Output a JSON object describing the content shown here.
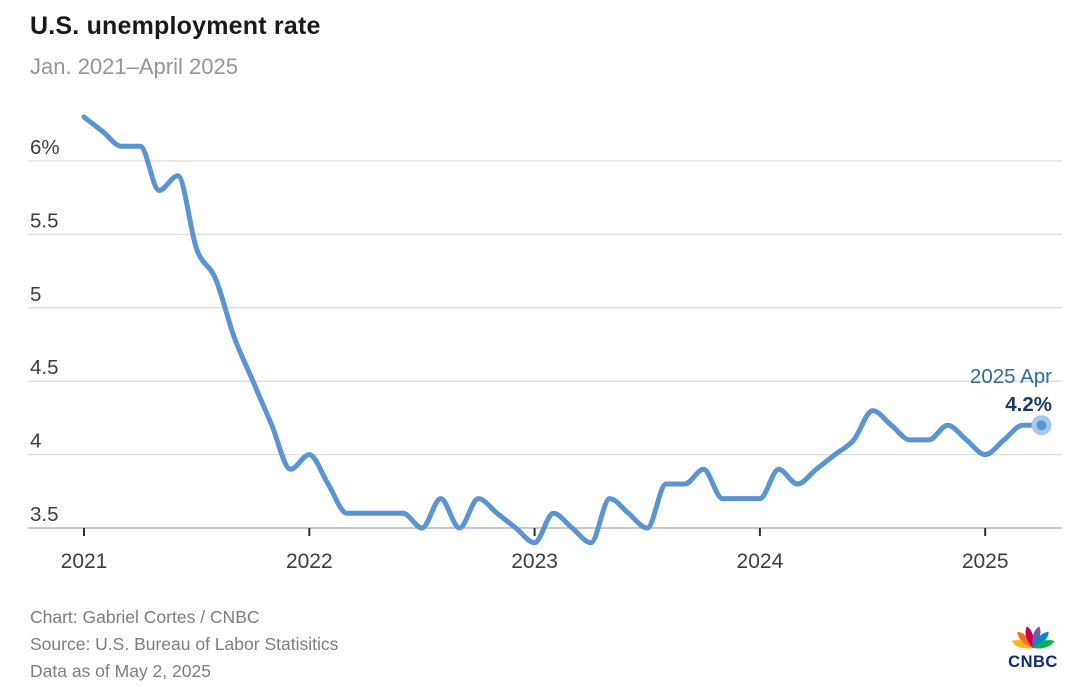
{
  "header": {
    "title": "U.S. unemployment rate",
    "subtitle": "Jan. 2021–April 2025"
  },
  "chart_data": {
    "type": "line",
    "title": "U.S. unemployment rate",
    "subtitle": "Jan. 2021–April 2025",
    "series_name": "U.S. unemployment rate",
    "unit": "%",
    "x": [
      "2021-01",
      "2021-02",
      "2021-03",
      "2021-04",
      "2021-05",
      "2021-06",
      "2021-07",
      "2021-08",
      "2021-09",
      "2021-10",
      "2021-11",
      "2021-12",
      "2022-01",
      "2022-02",
      "2022-03",
      "2022-04",
      "2022-05",
      "2022-06",
      "2022-07",
      "2022-08",
      "2022-09",
      "2022-10",
      "2022-11",
      "2022-12",
      "2023-01",
      "2023-02",
      "2023-03",
      "2023-04",
      "2023-05",
      "2023-06",
      "2023-07",
      "2023-08",
      "2023-09",
      "2023-10",
      "2023-11",
      "2023-12",
      "2024-01",
      "2024-02",
      "2024-03",
      "2024-04",
      "2024-05",
      "2024-06",
      "2024-07",
      "2024-08",
      "2024-09",
      "2024-10",
      "2024-11",
      "2024-12",
      "2025-01",
      "2025-02",
      "2025-03",
      "2025-04"
    ],
    "values": [
      6.3,
      6.2,
      6.1,
      6.1,
      5.8,
      5.9,
      5.4,
      5.2,
      4.8,
      4.5,
      4.2,
      3.9,
      4.0,
      3.8,
      3.6,
      3.6,
      3.6,
      3.6,
      3.5,
      3.7,
      3.5,
      3.7,
      3.6,
      3.5,
      3.4,
      3.6,
      3.5,
      3.4,
      3.7,
      3.6,
      3.5,
      3.8,
      3.8,
      3.9,
      3.7,
      3.7,
      3.7,
      3.9,
      3.8,
      3.9,
      4.0,
      4.1,
      4.3,
      4.2,
      4.1,
      4.1,
      4.2,
      4.1,
      4.0,
      4.1,
      4.2,
      4.2
    ],
    "ylim": [
      3.3,
      6.45
    ],
    "grid": true,
    "legend": "none",
    "y_ticks": [
      {
        "value": 6.0,
        "label": "6%"
      },
      {
        "value": 5.5,
        "label": "5.5"
      },
      {
        "value": 5.0,
        "label": "5"
      },
      {
        "value": 4.5,
        "label": "4.5"
      },
      {
        "value": 4.0,
        "label": "4"
      },
      {
        "value": 3.5,
        "label": "3.5"
      }
    ],
    "x_ticks": [
      {
        "month_index": 0,
        "label": "2021"
      },
      {
        "month_index": 12,
        "label": "2022"
      },
      {
        "month_index": 24,
        "label": "2023"
      },
      {
        "month_index": 36,
        "label": "2024"
      },
      {
        "month_index": 48,
        "label": "2025"
      }
    ],
    "annotation": {
      "date_label": "2025 Apr",
      "value_label": "4.2%"
    },
    "colors": {
      "line": "#5b94d2",
      "end_dot_outer": "#a6c7ec",
      "annotation_date": "#2d6ca5",
      "annotation_value": "#1a3c63",
      "grid_line": "#dcdcdc",
      "axis_line": "#a8a8a8",
      "tick_mark": "#2f2f2f"
    }
  },
  "footer": {
    "credit": "Chart: Gabriel Cortes / CNBC",
    "source": "Source: U.S. Bureau of Labor Statisitics",
    "as_of": "Data as of May 2, 2025"
  },
  "logo": {
    "text": "CNBC",
    "text_color": "#0d2d6e",
    "feather_colors": [
      "#fcb711",
      "#f37021",
      "#cc004c",
      "#6460aa",
      "#0089d0",
      "#0db14b"
    ]
  }
}
